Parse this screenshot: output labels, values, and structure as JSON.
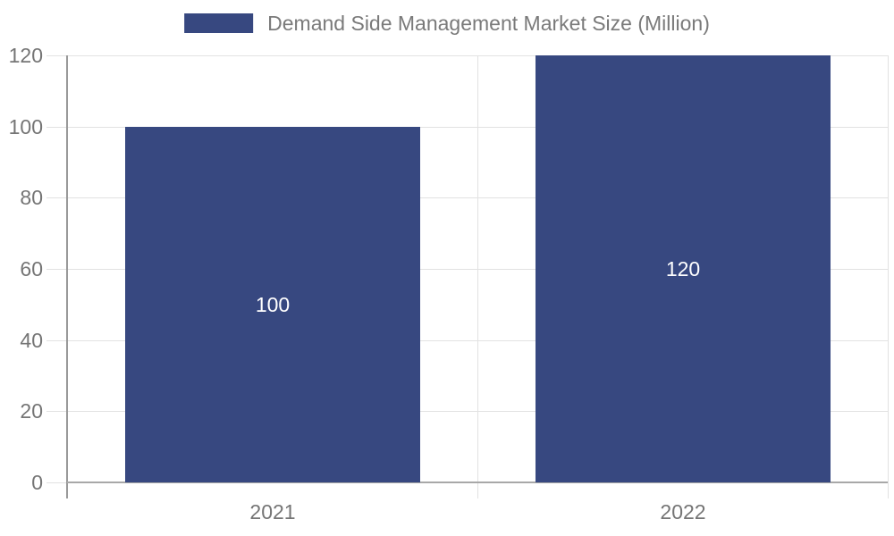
{
  "chart_data": {
    "type": "bar",
    "title": "Demand Side Management Market Size (Million)",
    "legend_position": "top",
    "categories": [
      "2021",
      "2022"
    ],
    "values": [
      100,
      120
    ],
    "ylim": [
      0,
      120
    ],
    "yticks": [
      0,
      20,
      40,
      60,
      80,
      100,
      120
    ],
    "grid": true,
    "bar_labels_inside": true,
    "colors": {
      "bar": "#374880",
      "bar_label_text": "#ffffff",
      "axis_text": "#757575",
      "legend_text": "#7a7a7a",
      "gridline": "#e2e2e2",
      "axis_line": "#9a9a9a",
      "baseline": "#a8a8a8",
      "background": "#ffffff"
    }
  }
}
